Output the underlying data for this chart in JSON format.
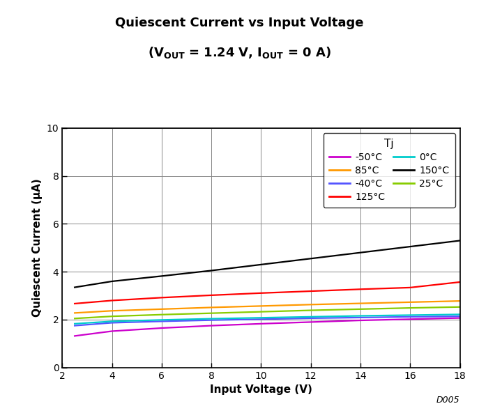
{
  "title_line1": "Quiescent Current vs Input Voltage",
  "xlabel": "Input Voltage (V)",
  "ylabel": "Quiescent Current (μA)",
  "xlim": [
    2,
    18
  ],
  "ylim": [
    0,
    10
  ],
  "xticks": [
    2,
    4,
    6,
    8,
    10,
    12,
    14,
    16,
    18
  ],
  "yticks": [
    0,
    2,
    4,
    6,
    8,
    10
  ],
  "annotation": "D005",
  "legend_title": "Tj",
  "curves": [
    {
      "label": "-50°C",
      "color": "#CC00CC",
      "x": [
        2.5,
        4,
        6,
        8,
        10,
        12,
        14,
        16,
        18
      ],
      "y": [
        1.32,
        1.52,
        1.65,
        1.75,
        1.83,
        1.9,
        1.97,
        2.02,
        2.07
      ]
    },
    {
      "label": "-40°C",
      "color": "#5555FF",
      "x": [
        2.5,
        4,
        6,
        8,
        10,
        12,
        14,
        16,
        18
      ],
      "y": [
        1.75,
        1.87,
        1.93,
        1.98,
        2.02,
        2.06,
        2.09,
        2.12,
        2.14
      ]
    },
    {
      "label": "0°C",
      "color": "#00CCCC",
      "x": [
        2.5,
        4,
        6,
        8,
        10,
        12,
        14,
        16,
        18
      ],
      "y": [
        1.83,
        1.93,
        1.99,
        2.04,
        2.08,
        2.12,
        2.16,
        2.19,
        2.22
      ]
    },
    {
      "label": "25°C",
      "color": "#88CC00",
      "x": [
        2.5,
        4,
        6,
        8,
        10,
        12,
        14,
        16,
        18
      ],
      "y": [
        2.05,
        2.14,
        2.21,
        2.27,
        2.33,
        2.39,
        2.44,
        2.49,
        2.53
      ]
    },
    {
      "label": "85°C",
      "color": "#FF9900",
      "x": [
        2.5,
        4,
        6,
        8,
        10,
        12,
        14,
        16,
        18
      ],
      "y": [
        2.28,
        2.37,
        2.44,
        2.51,
        2.57,
        2.63,
        2.68,
        2.73,
        2.78
      ]
    },
    {
      "label": "125°C",
      "color": "#FF0000",
      "x": [
        2.5,
        4,
        6,
        8,
        10,
        12,
        14,
        16,
        18
      ],
      "y": [
        2.67,
        2.8,
        2.92,
        3.02,
        3.11,
        3.19,
        3.27,
        3.34,
        3.57
      ]
    },
    {
      "label": "150°C",
      "color": "#000000",
      "x": [
        2.5,
        4,
        6,
        8,
        10,
        12,
        14,
        16,
        18
      ],
      "y": [
        3.35,
        3.6,
        3.82,
        4.05,
        4.3,
        4.55,
        4.8,
        5.05,
        5.3
      ]
    }
  ]
}
